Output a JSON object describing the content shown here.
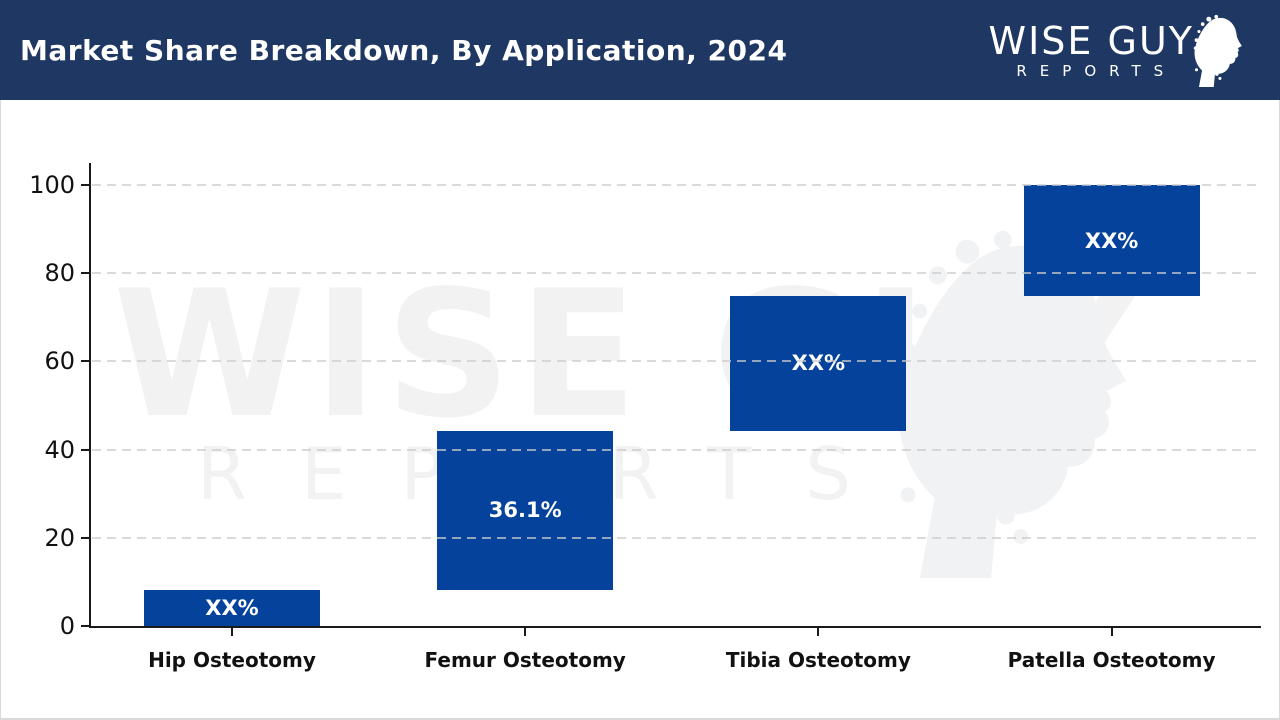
{
  "header": {
    "title": "Market Share Breakdown, By Application, 2024",
    "logo": {
      "line1": "WISE GUY",
      "line2": "REPORTS"
    }
  },
  "watermark": {
    "line1": "WISE GUY",
    "line2": "REPORTS"
  },
  "chart_data": {
    "type": "bar",
    "subtype": "floating-waterfall-stacked-to-100",
    "title": "Market Share Breakdown, By Application, 2024",
    "categories": [
      "Hip Osteotomy",
      "Femur Osteotomy",
      "Tibia Osteotomy",
      "Patella Osteotomy"
    ],
    "segments": [
      {
        "category": "Hip Osteotomy",
        "start": 0,
        "end": 8.2,
        "label": "XX%"
      },
      {
        "category": "Femur Osteotomy",
        "start": 8.2,
        "end": 44.3,
        "label": "36.1%"
      },
      {
        "category": "Tibia Osteotomy",
        "start": 44.3,
        "end": 74.8,
        "label": "XX%"
      },
      {
        "category": "Patella Osteotomy",
        "start": 74.8,
        "end": 100,
        "label": "XX%"
      }
    ],
    "ylabel": "",
    "xlabel": "",
    "ylim": [
      0,
      105
    ],
    "yticks": [
      0,
      20,
      40,
      60,
      80,
      100
    ],
    "grid": "horizontal-dashed",
    "legend": "none",
    "bar_color": "#05429b",
    "bar_label_color": "#ffffff",
    "header_color": "#1f3863"
  }
}
